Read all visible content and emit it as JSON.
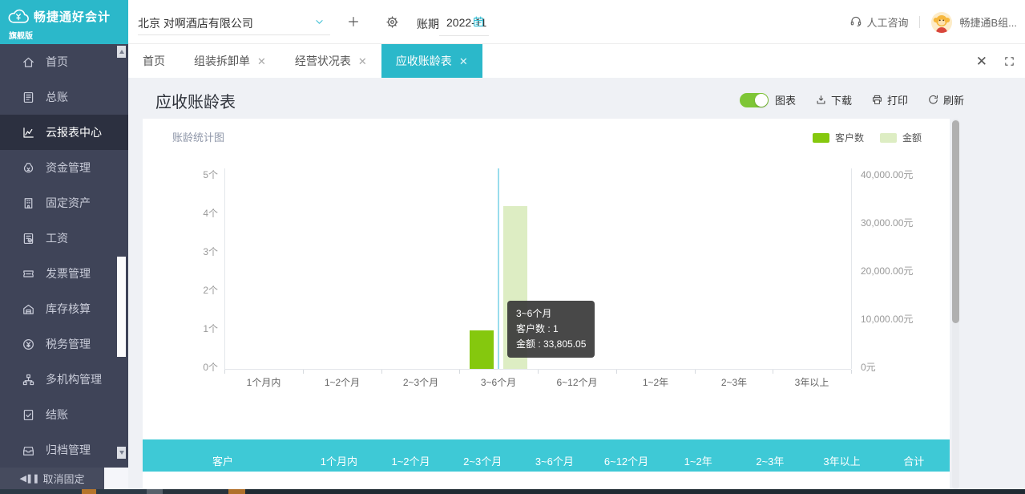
{
  "brand": {
    "logo_text": "畅捷通好会计",
    "edition": "旗舰版"
  },
  "header": {
    "company": "北京 对啊酒店有限公司",
    "period_label": "账期",
    "period_value": "2022-11",
    "consult": "人工咨询",
    "user": "畅捷通B组..."
  },
  "tabs": [
    {
      "key": "home",
      "label": "首页",
      "closable": false,
      "active": false
    },
    {
      "key": "assembly-order",
      "label": "组装拆卸单",
      "closable": true,
      "active": false
    },
    {
      "key": "operating-report",
      "label": "经营状况表",
      "closable": true,
      "active": false
    },
    {
      "key": "ar-aging",
      "label": "应收账龄表",
      "closable": true,
      "active": true
    }
  ],
  "sidebar": {
    "items": [
      {
        "key": "home",
        "label": "首页",
        "icon": "home-icon",
        "active": false
      },
      {
        "key": "general-ledger",
        "label": "总账",
        "icon": "ledger-icon",
        "active": false
      },
      {
        "key": "cloud-reports",
        "label": "云报表中心",
        "icon": "cloud-report-icon",
        "active": true
      },
      {
        "key": "funds",
        "label": "资金管理",
        "icon": "funds-icon",
        "active": false
      },
      {
        "key": "fixed-assets",
        "label": "固定资产",
        "icon": "fixed-assets-icon",
        "active": false
      },
      {
        "key": "payroll",
        "label": "工资",
        "icon": "payroll-icon",
        "active": false
      },
      {
        "key": "invoice",
        "label": "发票管理",
        "icon": "invoice-icon",
        "active": false
      },
      {
        "key": "inventory",
        "label": "库存核算",
        "icon": "inventory-icon",
        "active": false
      },
      {
        "key": "tax",
        "label": "税务管理",
        "icon": "tax-icon",
        "active": false
      },
      {
        "key": "multi-org",
        "label": "多机构管理",
        "icon": "multi-org-icon",
        "active": false
      },
      {
        "key": "closing",
        "label": "结账",
        "icon": "closing-icon",
        "active": false
      },
      {
        "key": "archive",
        "label": "归档管理",
        "icon": "archive-icon",
        "active": false
      }
    ],
    "unpin": "取消固定"
  },
  "page": {
    "title": "应收账龄表",
    "toolbar": {
      "toggle_label": "图表",
      "download": "下载",
      "print": "打印",
      "refresh": "刷新"
    }
  },
  "chart_data": {
    "type": "bar",
    "title": "账龄统计图",
    "categories": [
      "1个月内",
      "1~2个月",
      "2~3个月",
      "3~6个月",
      "6~12个月",
      "1~2年",
      "2~3年",
      "3年以上"
    ],
    "series": [
      {
        "name": "客户数",
        "axis": "left",
        "color": "#85C80E",
        "values": [
          0,
          0,
          0,
          1,
          0,
          0,
          0,
          0
        ]
      },
      {
        "name": "金额",
        "axis": "right",
        "color": "#DDEDC3",
        "values": [
          0,
          0,
          0,
          33805.05,
          0,
          0,
          0,
          0
        ]
      }
    ],
    "left_axis": {
      "unit": "个",
      "min": 0,
      "max": 5,
      "ticks": [
        "5个",
        "4个",
        "3个",
        "2个",
        "1个",
        "0个"
      ]
    },
    "right_axis": {
      "unit": "元",
      "min": 0,
      "max": 40000,
      "ticks": [
        "40,000.00元",
        "30,000.00元",
        "20,000.00元",
        "10,000.00元",
        "0元"
      ]
    },
    "legend_position": "top-right",
    "grid": false,
    "hover_category": "3~6个月",
    "tooltip": {
      "category": "3~6个月",
      "lines": [
        "客户数 : 1",
        "金额 : 33,805.05"
      ]
    }
  },
  "table": {
    "columns": [
      "客户",
      "1个月内",
      "1~2个月",
      "2~3个月",
      "3~6个月",
      "6~12个月",
      "1~2年",
      "2~3年",
      "3年以上",
      "合计"
    ]
  },
  "colors": {
    "brand_teal": "#2BB8CA",
    "table_header_teal": "#3EC9D6",
    "toggle_green": "#7EC636",
    "bar_customer_green": "#85C80E",
    "bar_amount_green": "#DDEDC3",
    "sidebar_bg": "#3F4458",
    "sidebar_active_bg": "#2C3040",
    "crosshair_blue": "#8ED8EA",
    "tooltip_bg": "#3A3A3A"
  }
}
